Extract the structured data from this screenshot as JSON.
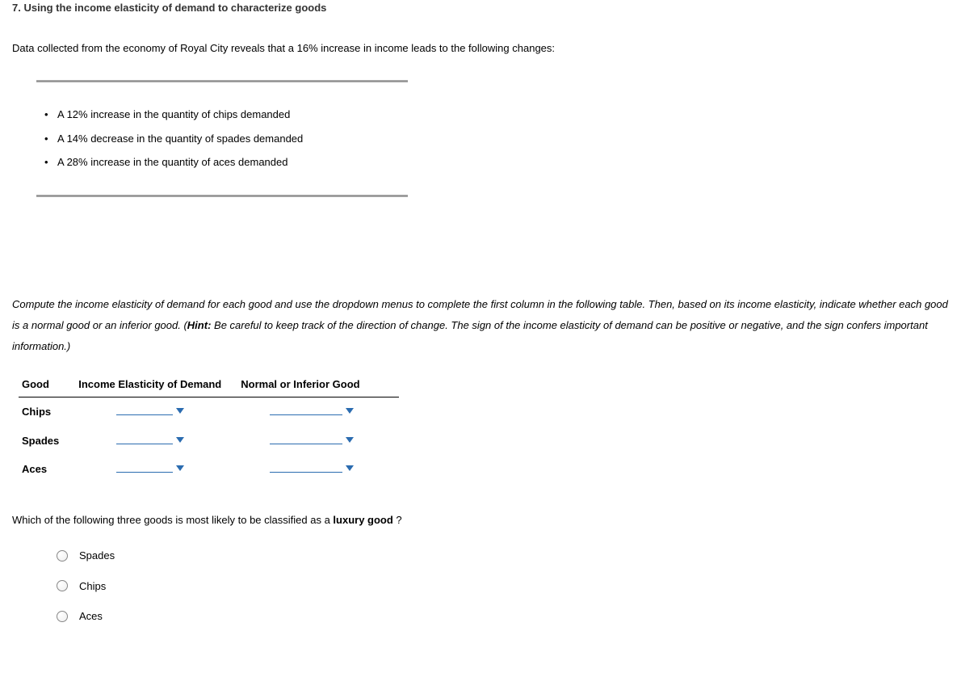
{
  "title": "7. Using the income elasticity of demand to characterize goods",
  "intro": "Data collected from the economy of Royal City reveals that a 16% increase in income leads to the following changes:",
  "bullets": [
    "A 12% increase in the quantity of chips demanded",
    "A 14% decrease in the quantity of spades demanded",
    "A 28% increase in the quantity of aces demanded"
  ],
  "instruction_part1": "Compute the income elasticity of demand for each good and use the dropdown menus to complete the first column in the following table. Then, based on its income elasticity, indicate whether each good is a normal good or an inferior good. (",
  "hint_label": "Hint:",
  "instruction_part2": " Be careful to keep track of the direction of change. The sign of the income elasticity of demand can be positive or negative, and the sign confers important information.)",
  "table": {
    "headers": {
      "good": "Good",
      "elasticity": "Income Elasticity of Demand",
      "type": "Normal or Inferior Good"
    },
    "rows": [
      {
        "good": "Chips"
      },
      {
        "good": "Spades"
      },
      {
        "good": "Aces"
      }
    ]
  },
  "followup_pre": "Which of the following three goods is most likely to be classified as a ",
  "followup_bold": "luxury good",
  "followup_post": " ?",
  "options": [
    "Spades",
    "Chips",
    "Aces"
  ]
}
